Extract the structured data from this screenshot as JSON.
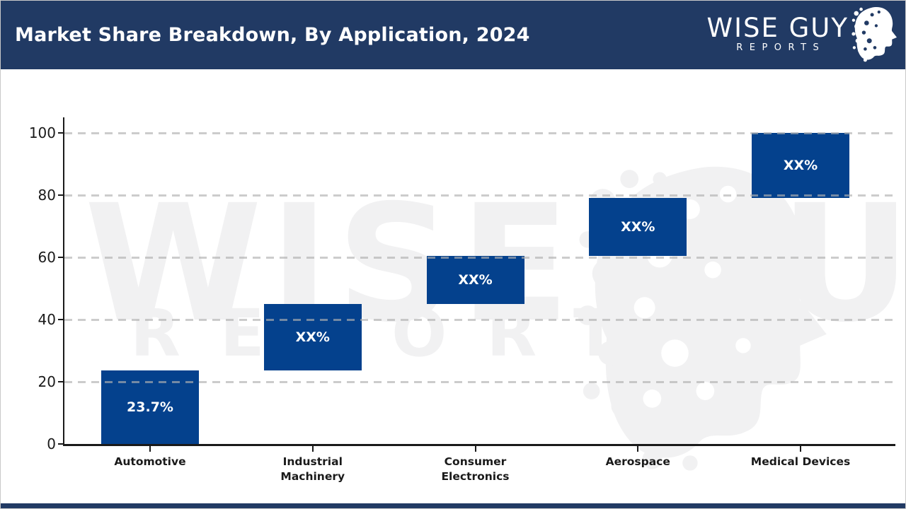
{
  "header": {
    "title": "Market Share Breakdown, By Application, 2024",
    "bg_color": "#213A64",
    "logo": {
      "line1": "WISE GUY",
      "line2": "REPORTS"
    }
  },
  "watermark": {
    "line1": "WISE GUY",
    "line2": "REPORTS"
  },
  "footer": {
    "bg_color": "#213A64"
  },
  "chart_data": {
    "type": "bar",
    "subtype": "waterfall",
    "title": "Market Share Breakdown, By Application, 2024",
    "categories": [
      "Automotive",
      "Industrial Machinery",
      "Consumer Electronics",
      "Aerospace",
      "Medical Devices"
    ],
    "segments": [
      {
        "category": "Automotive",
        "category_display": "Automotive",
        "start": 0,
        "end": 23.7,
        "label": "23.7%"
      },
      {
        "category": "Industrial Machinery",
        "category_display": "Industrial\nMachinery",
        "start": 23.7,
        "end": 45,
        "label": "XX%"
      },
      {
        "category": "Consumer Electronics",
        "category_display": "Consumer\nElectronics",
        "start": 45,
        "end": 60.5,
        "label": "XX%"
      },
      {
        "category": "Aerospace",
        "category_display": "Aerospace",
        "start": 60.5,
        "end": 79,
        "label": "XX%"
      },
      {
        "category": "Medical Devices",
        "category_display": "Medical Devices",
        "start": 79,
        "end": 100,
        "label": "XX%"
      }
    ],
    "ylim": [
      0,
      100
    ],
    "yticks": [
      "0",
      "20",
      "40",
      "60",
      "80",
      "100"
    ],
    "grid": "horizontal-dashed",
    "legend": "none",
    "bar_color": "#04418D",
    "value_label_color": "#ffffff",
    "axis_color": "#1a1a1a",
    "grid_color": "#b0b0b0",
    "watermark_color": "#f1f1f2"
  }
}
